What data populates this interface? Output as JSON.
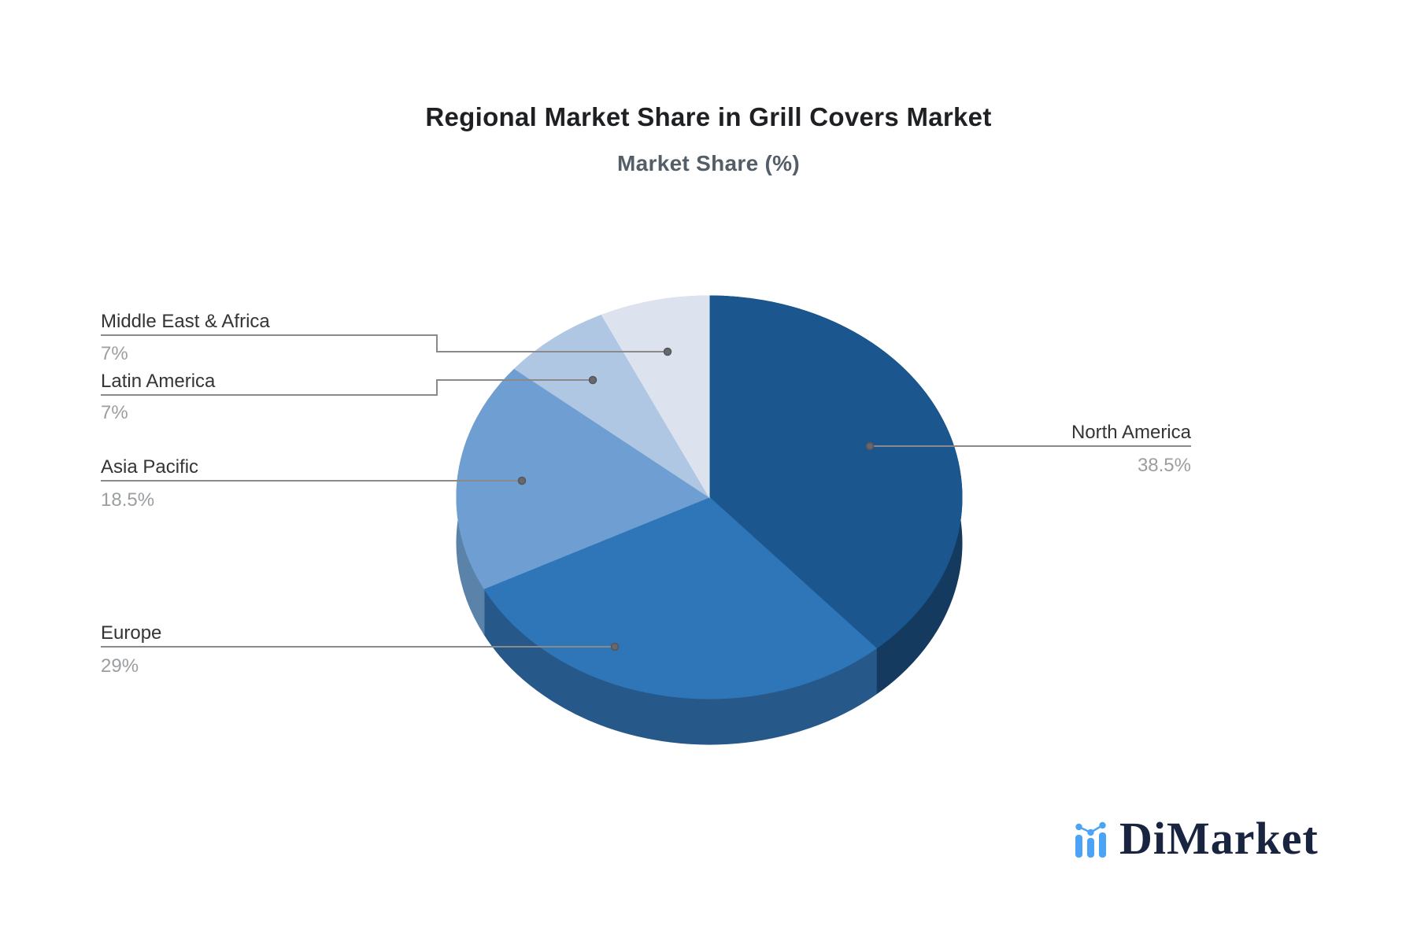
{
  "header": {
    "title": "Regional Market Share in Grill Covers Market",
    "subtitle": "Market Share (%)"
  },
  "chart_data": {
    "type": "pie",
    "style": "3d-pie",
    "title": "Regional Market Share in Grill Covers Market",
    "subtitle": "Market Share (%)",
    "unit": "%",
    "start_angle_deg": 0,
    "direction": "clockwise",
    "labels": [
      "North America",
      "Europe",
      "Asia Pacific",
      "Latin America",
      "Middle East & Africa"
    ],
    "values": [
      38.5,
      29,
      18.5,
      7,
      7
    ],
    "value_labels": [
      "38.5%",
      "29%",
      "18.5%",
      "7%",
      "7%"
    ],
    "colors": {
      "top": [
        "#1b578e",
        "#2e76b8",
        "#6e9ed2",
        "#afc7e3",
        "#dce3ee"
      ],
      "side": [
        "#153a5f",
        "#26598a",
        "#5b82a8",
        "#8ba6c6",
        "#b9c4d4"
      ]
    },
    "label_color": "#333436",
    "value_color": "#9b9ea1",
    "leader_color": "#8a8a8a",
    "legend": "none",
    "background": "#ffffff"
  },
  "logo": {
    "text": "DiMarket",
    "icon": "bar-chart-logo-icon",
    "icon_color": "#4ba3f7",
    "text_color": "#192440"
  }
}
